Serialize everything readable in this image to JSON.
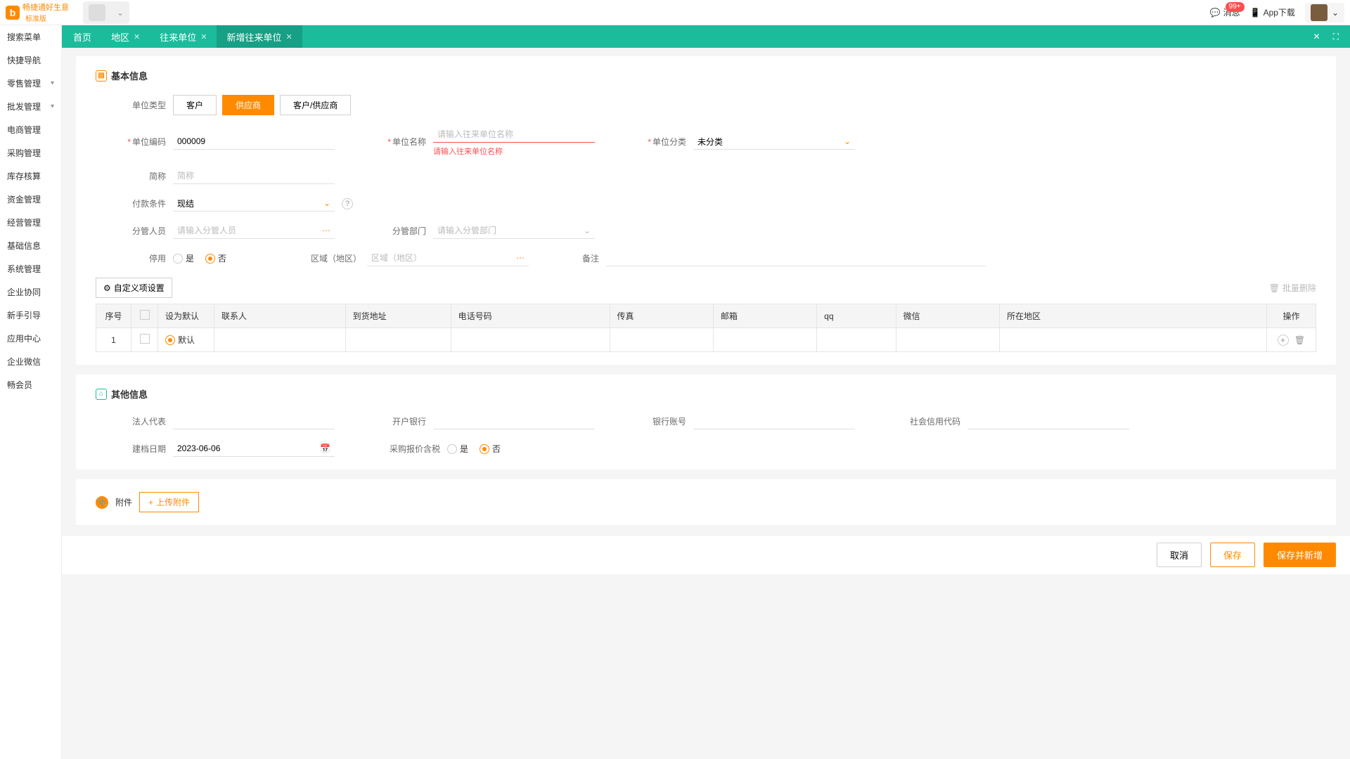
{
  "header": {
    "logo_text": "畅捷通好生意",
    "edition": "标准版",
    "message_label": "消息",
    "message_badge": "99+",
    "app_download": "App下载"
  },
  "sidebar": {
    "items": [
      {
        "label": "搜索菜单",
        "expandable": false
      },
      {
        "label": "快捷导航",
        "expandable": false
      },
      {
        "label": "零售管理",
        "expandable": true
      },
      {
        "label": "批发管理",
        "expandable": true
      },
      {
        "label": "电商管理",
        "expandable": false
      },
      {
        "label": "采购管理",
        "expandable": false
      },
      {
        "label": "库存核算",
        "expandable": false
      },
      {
        "label": "资金管理",
        "expandable": false
      },
      {
        "label": "经营管理",
        "expandable": false
      },
      {
        "label": "基础信息",
        "expandable": false
      },
      {
        "label": "系统管理",
        "expandable": false
      },
      {
        "label": "企业协同",
        "expandable": false
      },
      {
        "label": "新手引导",
        "expandable": false
      },
      {
        "label": "应用中心",
        "expandable": false
      },
      {
        "label": "企业微信",
        "expandable": false
      },
      {
        "label": "畅会员",
        "expandable": false
      }
    ]
  },
  "tabs": [
    {
      "label": "首页",
      "closable": false
    },
    {
      "label": "地区",
      "closable": true
    },
    {
      "label": "往来单位",
      "closable": true
    },
    {
      "label": "新增往来单位",
      "closable": true,
      "active": true
    }
  ],
  "section1": {
    "title": "基本信息",
    "unit_type_label": "单位类型",
    "unit_type_options": [
      "客户",
      "供应商",
      "客户/供应商"
    ],
    "unit_type_selected": 1,
    "unit_code_label": "单位编码",
    "unit_code_value": "000009",
    "unit_name_label": "单位名称",
    "unit_name_placeholder": "请输入往来单位名称",
    "unit_name_error": "请输入往来单位名称",
    "unit_category_label": "单位分类",
    "unit_category_value": "未分类",
    "short_name_label": "简称",
    "short_name_placeholder": "简称",
    "pay_terms_label": "付款条件",
    "pay_terms_value": "现结",
    "manager_label": "分管人员",
    "manager_placeholder": "请输入分管人员",
    "department_label": "分管部门",
    "department_placeholder": "请输入分管部门",
    "disable_label": "停用",
    "radio_yes": "是",
    "radio_no": "否",
    "region_label": "区域（地区）",
    "region_placeholder": "区域（地区）",
    "remark_label": "备注",
    "custom_config": "自定义项设置",
    "batch_delete": "批量删除"
  },
  "contact_table": {
    "columns": [
      "序号",
      "设为默认",
      "联系人",
      "到货地址",
      "电话号码",
      "传真",
      "邮箱",
      "qq",
      "微信",
      "所在地区",
      "操作"
    ],
    "row1_seq": "1",
    "row1_default": "默认"
  },
  "section2": {
    "title": "其他信息",
    "legal_rep": "法人代表",
    "bank_name": "开户银行",
    "bank_account": "银行账号",
    "credit_code": "社会信用代码",
    "file_date_label": "建档日期",
    "file_date_value": "2023-06-06",
    "quote_tax_label": "采购报价含税",
    "radio_yes": "是",
    "radio_no": "否"
  },
  "attachments": {
    "label": "附件",
    "upload": "上传附件"
  },
  "footer": {
    "cancel": "取消",
    "save": "保存",
    "save_and_new": "保存并新增"
  }
}
